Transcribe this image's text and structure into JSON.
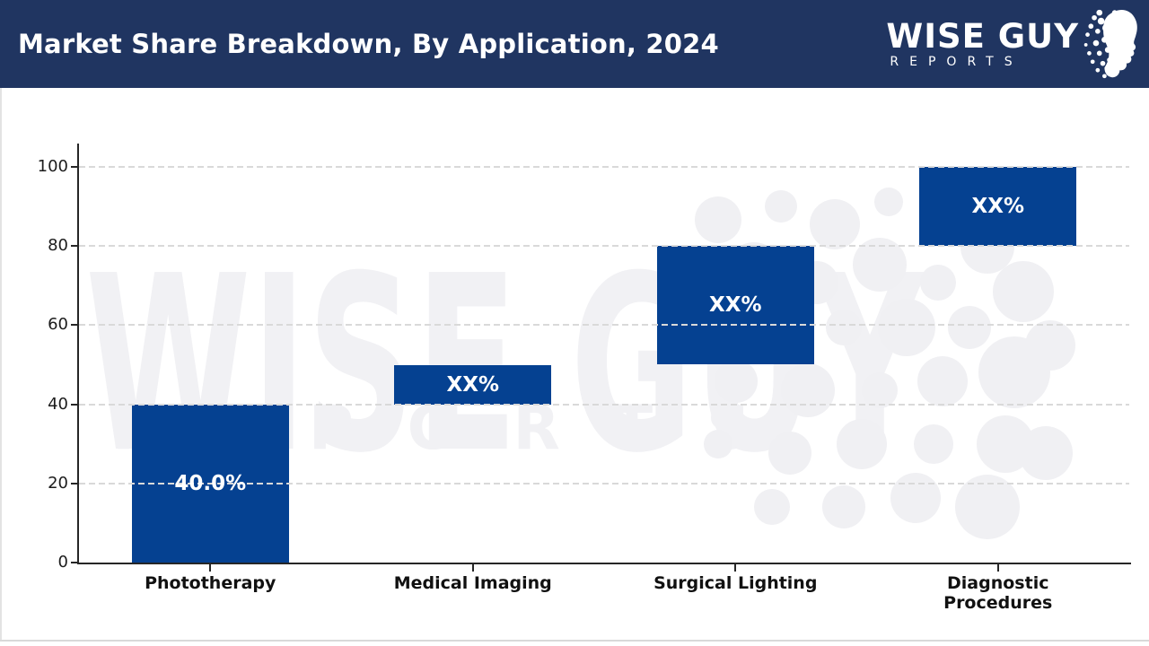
{
  "header": {
    "title": "Market Share Breakdown, By Application, 2024",
    "logo": {
      "wordmark": "WISE GUY",
      "subtext": "REPORTS"
    }
  },
  "watermark": {
    "line1": "WISE GUY",
    "line2": "REPORTS"
  },
  "chart_data": {
    "type": "bar",
    "subtype": "floating-segment-waterfall",
    "title": "Market Share Breakdown, By Application, 2024",
    "categories": [
      "Phototherapy",
      "Medical Imaging",
      "Surgical Lighting",
      "Diagnostic Procedures"
    ],
    "segments": [
      {
        "category": "Phototherapy",
        "tick_label": "Phototherapy",
        "start": 0,
        "end": 40,
        "label": "40.0%"
      },
      {
        "category": "Medical Imaging",
        "tick_label": "Medical Imaging",
        "start": 40,
        "end": 50,
        "label": "XX%"
      },
      {
        "category": "Surgical Lighting",
        "tick_label": "Surgical Lighting",
        "start": 50,
        "end": 80,
        "label": "XX%"
      },
      {
        "category": "Diagnostic Procedures",
        "tick_label": "Diagnostic\nProcedures",
        "start": 80,
        "end": 100,
        "label": "XX%"
      }
    ],
    "yticks": [
      0,
      20,
      40,
      60,
      80,
      100
    ],
    "ylim": [
      0,
      105
    ],
    "xlabel": "",
    "ylabel": "",
    "grid": true,
    "gridline_style": "dashed",
    "legend": "none",
    "colors": {
      "bar": "#054191",
      "bar_label": "#ffffff",
      "axis": "#262626",
      "gridline": "#d9d9d9",
      "header_bg": "#203561",
      "header_text": "#ffffff",
      "watermark": "#f1f1f4"
    }
  }
}
